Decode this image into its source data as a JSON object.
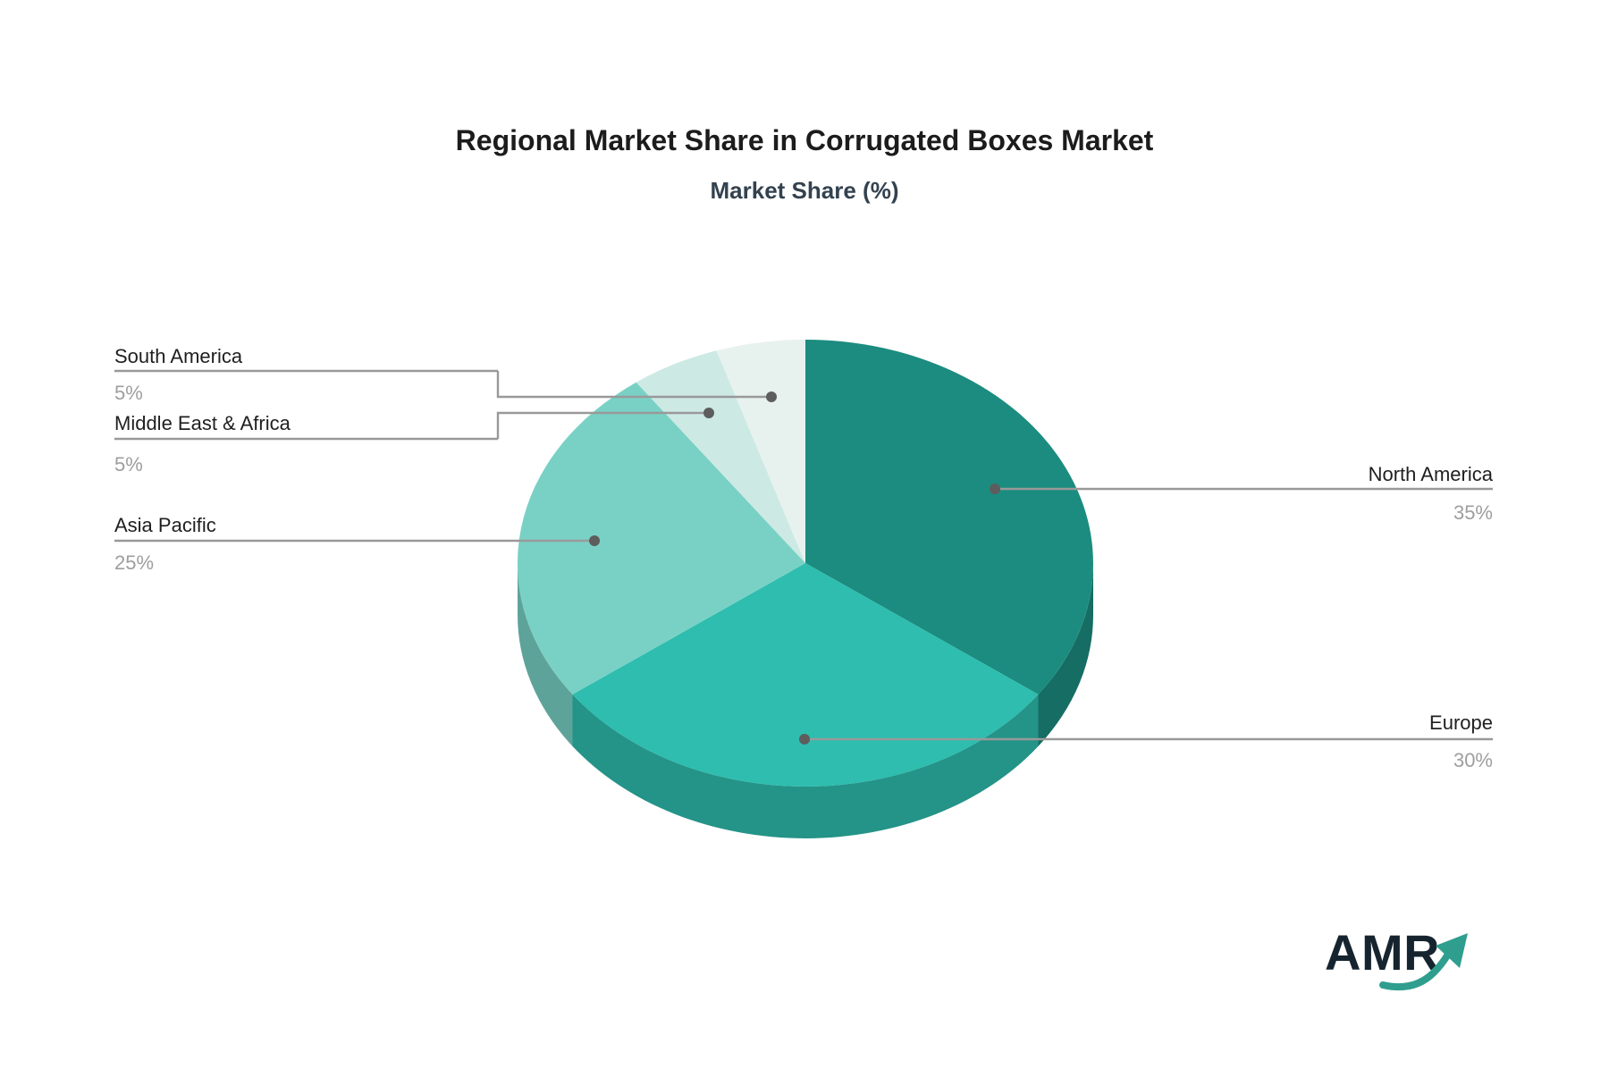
{
  "chart_data": {
    "type": "pie",
    "style": "3d",
    "title": "Regional Market Share in Corrugated Boxes Market",
    "subtitle": "Market Share (%)",
    "unit": "%",
    "categories": [
      "North America",
      "Europe",
      "Asia Pacific",
      "Middle East & Africa",
      "South America"
    ],
    "values": [
      35,
      30,
      25,
      5,
      5
    ],
    "value_labels": [
      "35%",
      "30%",
      "25%",
      "5%",
      "5%"
    ],
    "colors": [
      "#1b8c7f",
      "#2ebdae",
      "#79d1c5",
      "#cde9e4",
      "#e7f2ef"
    ],
    "start_angle_deg": 0,
    "direction": "clockwise",
    "legend_position": "callout-labels",
    "background": "#ffffff",
    "title_color": "#1c1c1c",
    "subtitle_color": "#33424f",
    "label_text_color": "#1f1f1f",
    "value_text_color": "#9e9e9e",
    "leader_line_color": "#999999",
    "dot_color": "#5d5d5d"
  },
  "logo": {
    "text": "AMR",
    "text_color": "#16242f",
    "accent_color": "#2f9e8e"
  }
}
